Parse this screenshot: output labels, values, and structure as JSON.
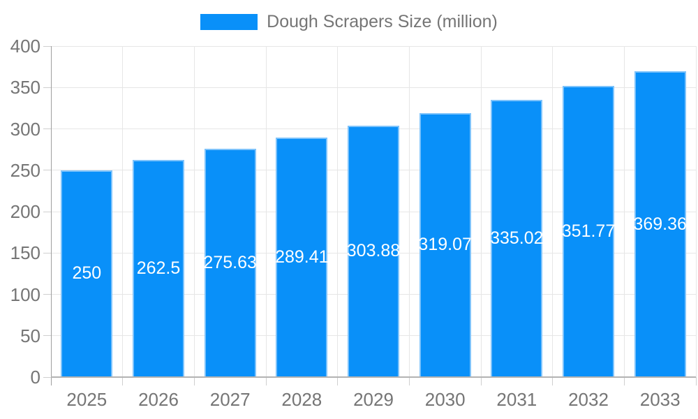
{
  "legend": {
    "label": "Dough Scrapers Size (million)"
  },
  "chart_data": {
    "type": "bar",
    "title": "Dough Scrapers Size (million)",
    "categories": [
      "2025",
      "2026",
      "2027",
      "2028",
      "2029",
      "2030",
      "2031",
      "2032",
      "2033"
    ],
    "series": [
      {
        "name": "Dough Scrapers Size (million)",
        "values": [
          250,
          262.5,
          275.63,
          289.41,
          303.88,
          319.07,
          335.02,
          351.77,
          369.36
        ]
      }
    ],
    "value_labels": [
      "250",
      "262.5",
      "275.63",
      "289.41",
      "303.88",
      "319.07",
      "335.02",
      "351.77",
      "369.36"
    ],
    "xlabel": "",
    "ylabel": "",
    "ylim": [
      0,
      400
    ],
    "ytick_step": 50,
    "ytick_labels": [
      "0",
      "50",
      "100",
      "150",
      "200",
      "250",
      "300",
      "350",
      "400"
    ],
    "grid": true,
    "legend_position": "top",
    "colors": {
      "bar": "#0990f9",
      "bar_border": "#7ec3fb",
      "grid": "#e6e6e6",
      "tick": "#cfcfcf",
      "y_axis": "#9e9e9e",
      "x_axis": "#b3b3b3",
      "axis_text": "#757575",
      "value_label": "#ffffff"
    }
  }
}
